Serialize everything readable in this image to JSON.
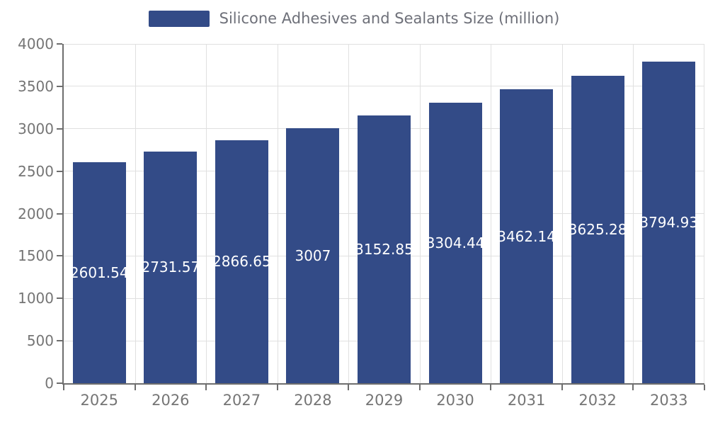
{
  "chart_data": {
    "type": "bar",
    "title": "Silicone Adhesives and Sealants Size (million)",
    "categories": [
      "2025",
      "2026",
      "2027",
      "2028",
      "2029",
      "2030",
      "2031",
      "2032",
      "2033"
    ],
    "series": [
      {
        "name": "Silicone Adhesives and Sealants Size (million)",
        "values": [
          2601.54,
          2731.57,
          2866.65,
          3007,
          3152.85,
          3304.44,
          3462.14,
          3625.28,
          3794.93
        ]
      }
    ],
    "bar_labels": [
      "2601.54",
      "2731.57",
      "2866.65",
      "3007",
      "3152.85",
      "3304.44",
      "3462.14",
      "3625.28",
      "3794.93"
    ],
    "xlabel": "",
    "ylabel": "",
    "ylim": [
      0,
      4000
    ],
    "yticks": [
      0,
      500,
      1000,
      1500,
      2000,
      2500,
      3000,
      3500,
      4000
    ],
    "grid": true,
    "legend_position": "top",
    "colors": {
      "bar": "#334b87",
      "grid": "#e0e0e0",
      "axis": "#6e6e6e",
      "tick_text": "#757575",
      "legend_text": "#6e7079",
      "bar_label_text": "#ffffff"
    }
  }
}
